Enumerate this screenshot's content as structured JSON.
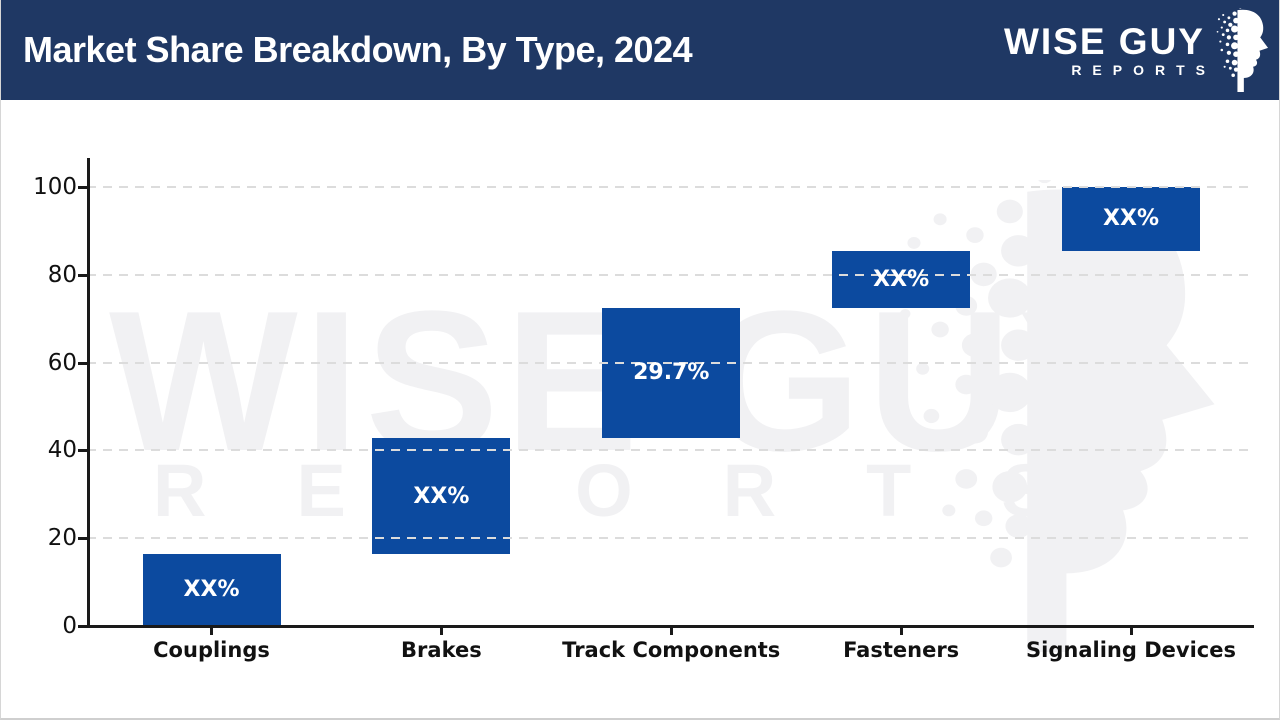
{
  "header": {
    "title": "Market Share Breakdown, By Type, 2024",
    "logo": {
      "line1": "WISE GUY",
      "line2": "REPORTS"
    }
  },
  "watermark": {
    "line1": "WISE GUY",
    "line2": "REPORTS"
  },
  "colors": {
    "header_bg": "#1f3864",
    "bar": "#0c4a9f",
    "grid": "#dcdcdc",
    "axis": "#1a1a1a",
    "watermark": "#f1f1f3"
  },
  "chart_data": {
    "type": "bar",
    "subtype": "floating-waterfall",
    "title": "Market Share Breakdown, By Type, 2024",
    "categories": [
      "Couplings",
      "Brakes",
      "Track Components",
      "Fasteners",
      "Signaling Devices"
    ],
    "segments": [
      {
        "category": "Couplings",
        "start": 0,
        "end": 16.4,
        "size": 16.4,
        "label": "XX%"
      },
      {
        "category": "Brakes",
        "start": 16.4,
        "end": 42.8,
        "size": 26.4,
        "label": "XX%"
      },
      {
        "category": "Track Components",
        "start": 42.8,
        "end": 72.5,
        "size": 29.7,
        "label": "29.7%"
      },
      {
        "category": "Fasteners",
        "start": 72.5,
        "end": 85.5,
        "size": 13.0,
        "label": "XX%"
      },
      {
        "category": "Signaling Devices",
        "start": 85.5,
        "end": 100,
        "size": 14.5,
        "label": "XX%"
      }
    ],
    "ylabel": "",
    "xlabel": "",
    "yticks": [
      0,
      20,
      40,
      60,
      80,
      100
    ],
    "ylim": [
      0,
      107
    ],
    "grid": "horizontal-dashed",
    "legend": "none",
    "bar_color": "#0c4a9f"
  }
}
